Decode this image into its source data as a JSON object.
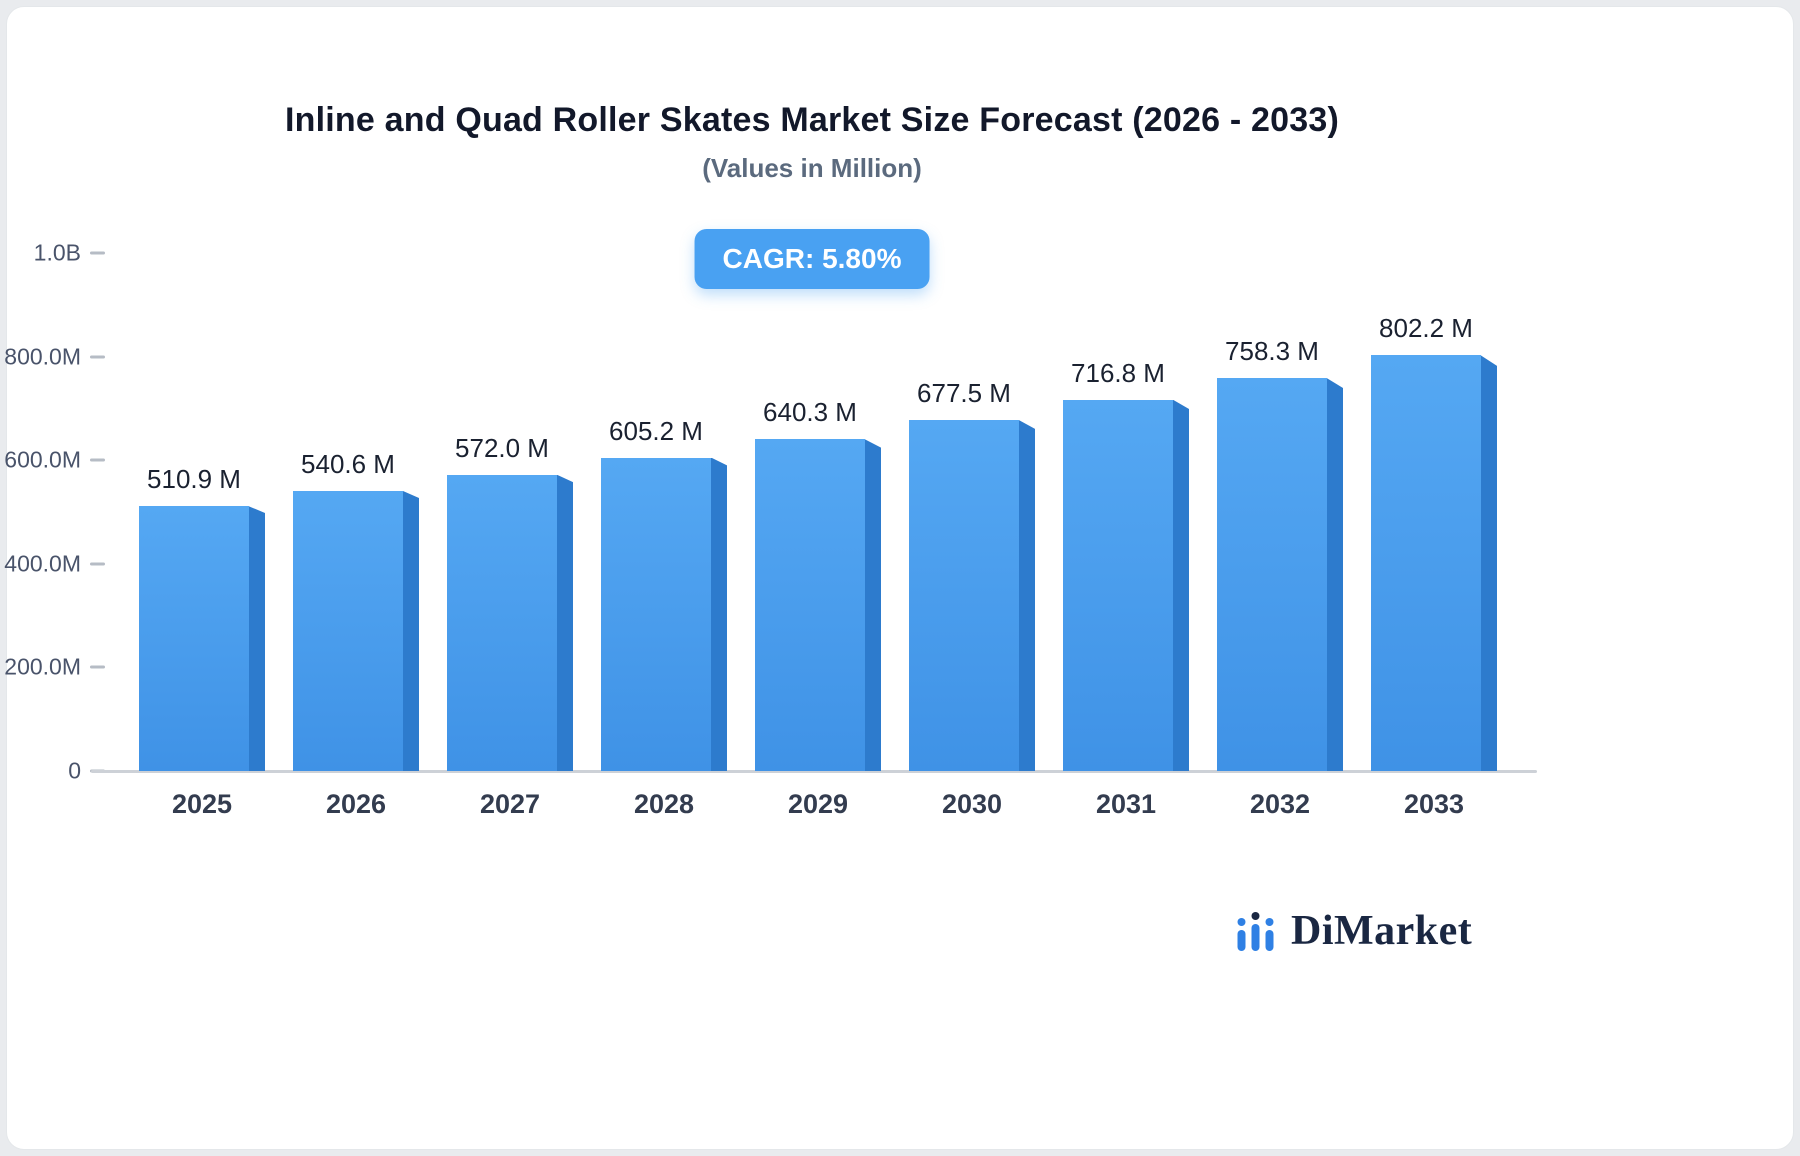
{
  "header": {
    "title": "Inline and Quad Roller Skates Market Size Forecast (2026 - 2033)",
    "subtitle": "(Values in Million)",
    "cagr_label": "CAGR: 5.80%"
  },
  "chart_data": {
    "type": "bar",
    "title": "Inline and Quad Roller Skates Market Size Forecast (2026 - 2033)",
    "subtitle": "(Values in Million)",
    "categories": [
      "2025",
      "2026",
      "2027",
      "2028",
      "2029",
      "2030",
      "2031",
      "2032",
      "2033"
    ],
    "values": [
      510.9,
      540.6,
      572.0,
      605.2,
      640.3,
      677.5,
      716.8,
      758.3,
      802.2
    ],
    "value_labels": [
      "510.9 M",
      "540.6 M",
      "572.0 M",
      "605.2 M",
      "640.3 M",
      "677.5 M",
      "716.8 M",
      "758.3 M",
      "802.2 M"
    ],
    "cagr": "5.80%",
    "xlabel": "",
    "ylabel": "",
    "ylim": [
      0,
      1000
    ],
    "y_ticks": [
      {
        "value": 0,
        "label": "0"
      },
      {
        "value": 200,
        "label": "200.0M"
      },
      {
        "value": 400,
        "label": "400.0M"
      },
      {
        "value": 600,
        "label": "600.0M"
      },
      {
        "value": 800,
        "label": "800.0M"
      },
      {
        "value": 1000,
        "label": "1.0B"
      }
    ],
    "grid": false,
    "legend": false,
    "colors": {
      "bar_top": "#55a8f3",
      "bar_bottom": "#3f92e6",
      "bar_side": "#2d7bcd",
      "badge_background": "#49a1f2",
      "badge_text": "#ffffff",
      "title_text": "#12182a",
      "subtitle_text": "#5b6a7e",
      "axis_text": "#49536a",
      "logo_blue": "#2f80e4",
      "logo_text": "#1a2742"
    }
  },
  "branding": {
    "logo_text": "DiMarket"
  }
}
